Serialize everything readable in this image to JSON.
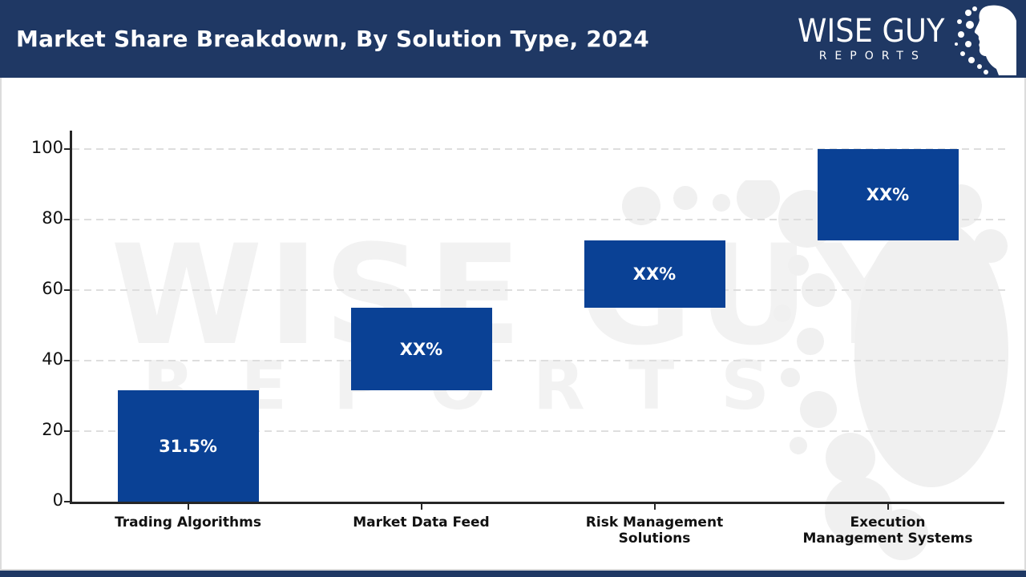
{
  "header": {
    "title": "Market Share Breakdown, By Solution Type, 2024",
    "logo": {
      "line1": "WISE GUY",
      "line2": "REPORTS"
    }
  },
  "watermark": {
    "line1": "WISE GUY",
    "line2": "REPORTS"
  },
  "colors": {
    "header_bg": "#1f3864",
    "footer_bg": "#1f3864",
    "bar": "#0a4195",
    "bar_label": "#ffffff",
    "grid": "#dedede",
    "axis": "#262626",
    "watermark": "#f2f2f2"
  },
  "chart_data": {
    "type": "bar",
    "subtype": "waterfall",
    "title": "Market Share Breakdown, By Solution Type, 2024",
    "categories": [
      "Trading Algorithms",
      "Market Data Feed",
      "Risk Management\nSolutions",
      "Execution\nManagement Systems"
    ],
    "series": [
      {
        "name": "Market Share",
        "segments": [
          {
            "category": "Trading Algorithms",
            "start": 0,
            "end": 31.5,
            "label": "31.5%"
          },
          {
            "category": "Market Data Feed",
            "start": 31.5,
            "end": 55,
            "label": "XX%"
          },
          {
            "category": "Risk Management Solutions",
            "start": 55,
            "end": 74,
            "label": "XX%"
          },
          {
            "category": "Execution Management Systems",
            "start": 74,
            "end": 100,
            "label": "XX%"
          }
        ]
      }
    ],
    "ylim": [
      0,
      100
    ],
    "yticks": [
      0,
      20,
      40,
      60,
      80,
      100
    ],
    "xlabel": "",
    "ylabel": "",
    "grid": "horizontal-dashed",
    "legend": "none"
  }
}
